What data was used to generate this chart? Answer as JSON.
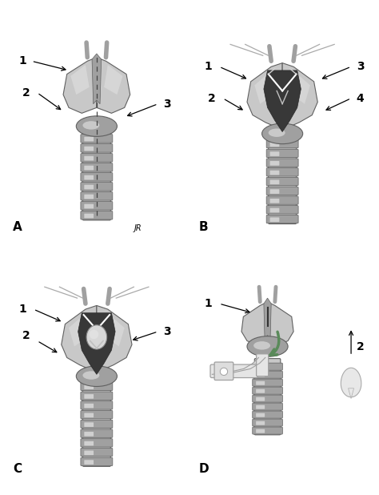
{
  "bg_color": "#ffffff",
  "panel_labels": [
    "A",
    "B",
    "C",
    "D"
  ],
  "light_gray": "#c8c8c8",
  "mid_gray": "#a0a0a0",
  "dark_gray": "#606060",
  "very_light": "#e5e5e5",
  "interior_dark": "#383838",
  "label_fontsize": 11,
  "num_fontsize": 10,
  "arrow_lw": 0.9
}
